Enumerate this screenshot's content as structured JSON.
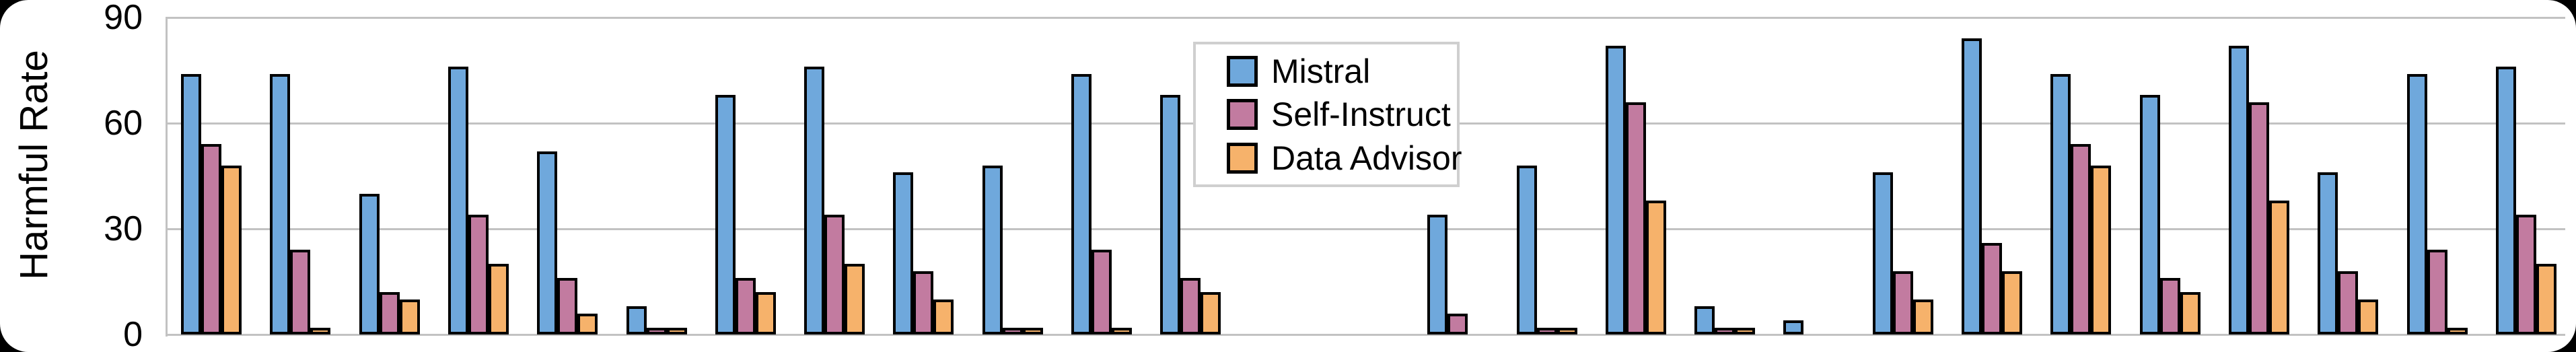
{
  "chart_data": {
    "type": "bar",
    "title": "",
    "ylabel": "Harmful Rate",
    "xlabel": "",
    "ylim": [
      0,
      90
    ],
    "yticks": [
      0,
      30,
      60,
      90
    ],
    "grid": "horizontal",
    "legend_position": "inside-top-middle-left",
    "x_axis_labels_visible": false,
    "num_slots": 27,
    "gap_slots": [
      12,
      13
    ],
    "series": [
      {
        "name": "Mistral",
        "color": "#6FA8DC",
        "values": [
          74,
          74,
          40,
          76,
          52,
          8,
          68,
          76,
          46,
          48,
          74,
          68,
          null,
          null,
          34,
          48,
          82,
          8,
          4,
          46,
          84,
          74,
          68,
          82,
          46,
          74,
          76
        ]
      },
      {
        "name": "Self-Instruct",
        "color": "#C27BA0",
        "values": [
          54,
          24,
          12,
          34,
          16,
          2,
          16,
          34,
          18,
          2,
          24,
          16,
          null,
          null,
          6,
          2,
          66,
          2,
          0,
          18,
          26,
          54,
          16,
          66,
          18,
          24,
          34
        ]
      },
      {
        "name": "Data Advisor",
        "color": "#F6B26B",
        "values": [
          48,
          2,
          10,
          20,
          6,
          2,
          12,
          20,
          10,
          2,
          2,
          12,
          null,
          null,
          0,
          2,
          38,
          2,
          0,
          10,
          18,
          48,
          12,
          38,
          10,
          2,
          20
        ]
      }
    ],
    "bar_outline_color": "#000000",
    "gridline_color": "#C2C2C2"
  }
}
